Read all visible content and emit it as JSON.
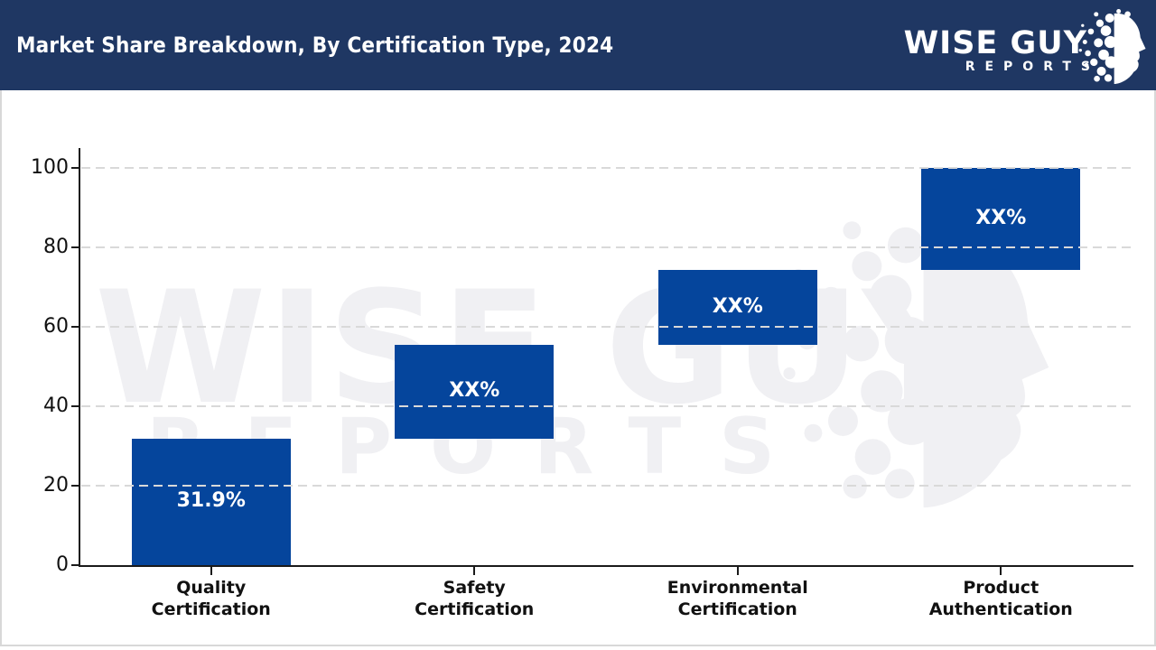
{
  "header": {
    "title": "Market Share Breakdown, By Certification Type, 2024",
    "logo": {
      "wordmark": "WISE GUY",
      "subtext": "REPORTS"
    }
  },
  "watermark": {
    "wordmark": "WISE GUY",
    "subtext": "REPORTS"
  },
  "chart_data": {
    "type": "bar",
    "subtype": "waterfall",
    "title": "Market Share Breakdown, By Certification Type, 2024",
    "categories": [
      "Quality Certification",
      "Safety Certification",
      "Environmental Certification",
      "Product Authentication"
    ],
    "category_lines": [
      [
        "Quality",
        "Certification"
      ],
      [
        "Safety",
        "Certification"
      ],
      [
        "Environmental",
        "Certification"
      ],
      [
        "Product",
        "Authentication"
      ]
    ],
    "bars": [
      {
        "category": "Quality Certification",
        "start": 0,
        "end": 31.9,
        "label": "31.9%"
      },
      {
        "category": "Safety Certification",
        "start": 31.9,
        "end": 55.4,
        "label": "XX%"
      },
      {
        "category": "Environmental Certification",
        "start": 55.4,
        "end": 74.3,
        "label": "XX%"
      },
      {
        "category": "Product Authentication",
        "start": 74.3,
        "end": 100,
        "label": "XX%"
      }
    ],
    "xlabel": "",
    "ylabel": "",
    "ylim": [
      0,
      105
    ],
    "yticks": [
      0,
      20,
      40,
      60,
      80,
      100
    ],
    "grid": {
      "horizontal": true,
      "style": "dashed",
      "above_bars": true
    },
    "legend": null,
    "bar_color": "#05459c",
    "bar_label_color": "#ffffff"
  },
  "colors": {
    "header_bg": "#1f3763",
    "bar": "#05459c",
    "grid": "#d9d9d9",
    "axis": "#1a1a1a",
    "watermark": "#f0f0f3",
    "text": "#111111"
  }
}
